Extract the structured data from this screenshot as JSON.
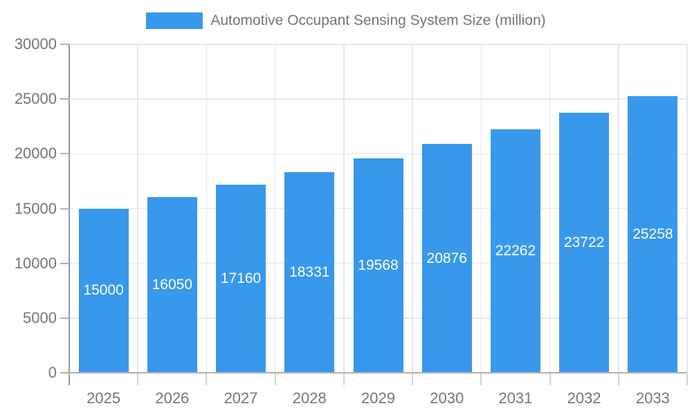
{
  "chart_data": {
    "type": "bar",
    "title": "Automotive Occupant Sensing System Size (million)",
    "legend_position": "top",
    "grid": true,
    "categories": [
      "2025",
      "2026",
      "2027",
      "2028",
      "2029",
      "2030",
      "2031",
      "2032",
      "2033"
    ],
    "values": [
      15000,
      16050,
      17160,
      18331,
      19568,
      20876,
      22262,
      23722,
      25258
    ],
    "bar_labels": [
      "15000",
      "16050",
      "17160",
      "18331",
      "19568",
      "20876",
      "22262",
      "23722",
      "25258"
    ],
    "xlabel": "",
    "ylabel": "",
    "ylim": [
      0,
      30000
    ],
    "yticks": [
      0,
      5000,
      10000,
      15000,
      20000,
      25000,
      30000
    ],
    "ytick_labels": [
      "0",
      "5000",
      "10000",
      "15000",
      "20000",
      "25000",
      "30000"
    ],
    "colors": {
      "bar": "#3898ec",
      "bar_label_text": "#ffffff",
      "grid": "#e7e7e9",
      "y_axis_line": "#9b9b9b",
      "x_axis_line": "#b2b2b2",
      "tick_text": "#757575",
      "legend_text": "#757575"
    }
  }
}
